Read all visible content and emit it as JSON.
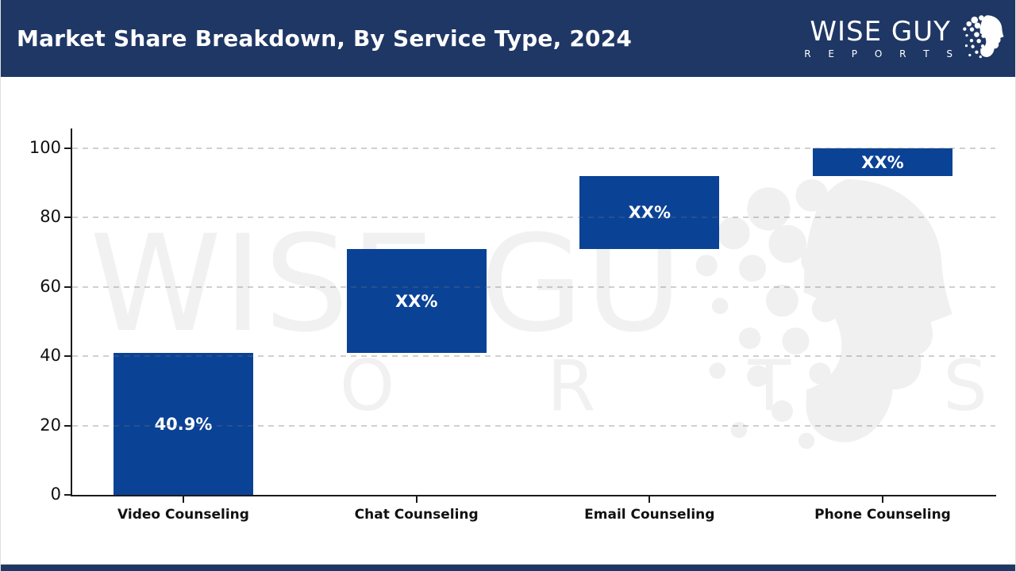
{
  "header": {
    "title": "Market Share Breakdown, By Service Type, 2024"
  },
  "logo": {
    "name": "WISE GUY",
    "tagline": "R E P O R T S"
  },
  "watermark": {
    "line1": "WISE GU",
    "line2": "P O R T S"
  },
  "colors": {
    "header_bg": "#1F3765",
    "bar": "#0A4296",
    "axis": "#1a1a1a",
    "watermark": "#f0f0f0"
  },
  "chart_data": {
    "type": "bar",
    "subtype": "waterfall",
    "title": "Market Share Breakdown, By Service Type, 2024",
    "categories": [
      "Video Counseling",
      "Chat Counseling",
      "Email Counseling",
      "Phone Counseling"
    ],
    "segments": [
      {
        "category": "Video Counseling",
        "start": 0,
        "end": 40.9,
        "label": "40.9%"
      },
      {
        "category": "Chat Counseling",
        "start": 40.9,
        "end": 70.9,
        "label": "XX%"
      },
      {
        "category": "Email Counseling",
        "start": 70.9,
        "end": 91.9,
        "label": "XX%"
      },
      {
        "category": "Phone Counseling",
        "start": 91.9,
        "end": 100,
        "label": "XX%"
      }
    ],
    "yticks": [
      0,
      20,
      40,
      60,
      80,
      100
    ],
    "ylim": [
      0,
      105
    ],
    "xlabel": "",
    "ylabel": "",
    "grid": "horizontal-dashed",
    "legend": false,
    "bar_color": "#0A4296",
    "bar_label_color": "#ffffff"
  }
}
